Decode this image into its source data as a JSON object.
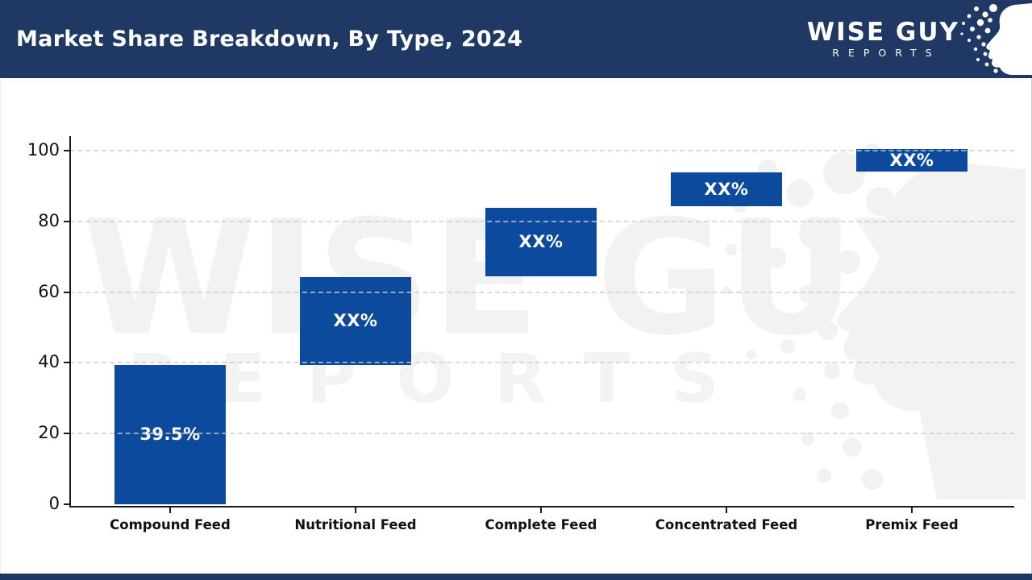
{
  "header": {
    "title": "Market Share Breakdown, By Type, 2024",
    "logo": {
      "line1": "WISE GUY",
      "line2": "REPORTS"
    }
  },
  "watermark": {
    "line1": "WISE GUY",
    "line2": "REPORTS"
  },
  "colors": {
    "header_bg": "#1f3864",
    "footer_bg": "#1f3864",
    "bar": "#0c4a9e",
    "bar_label": "#ffffff",
    "axis": "#1a1a1a",
    "grid": "#cbcbcb",
    "watermark": "#f2f2f2"
  },
  "chart_data": {
    "type": "bar",
    "subtype": "waterfall",
    "title": "Market Share Breakdown, By Type, 2024",
    "xlabel": "",
    "ylabel": "",
    "categories": [
      "Compound Feed",
      "Nutritional Feed",
      "Complete Feed",
      "Concentrated Feed",
      "Premix Feed"
    ],
    "segments": [
      {
        "category": "Compound Feed",
        "start": 0,
        "end": 39.5,
        "label": "39.5%"
      },
      {
        "category": "Nutritional Feed",
        "start": 39.5,
        "end": 64.2,
        "label": "XX%"
      },
      {
        "category": "Complete Feed",
        "start": 64.5,
        "end": 83.9,
        "label": "XX%"
      },
      {
        "category": "Concentrated Feed",
        "start": 84.3,
        "end": 93.9,
        "label": "XX%"
      },
      {
        "category": "Premix Feed",
        "start": 94.1,
        "end": 100.5,
        "label": "XX%"
      }
    ],
    "yticks": [
      0,
      20,
      40,
      60,
      80,
      100
    ],
    "ylim": [
      0,
      105
    ],
    "grid": "horizontal-dashed",
    "legend": "none"
  }
}
